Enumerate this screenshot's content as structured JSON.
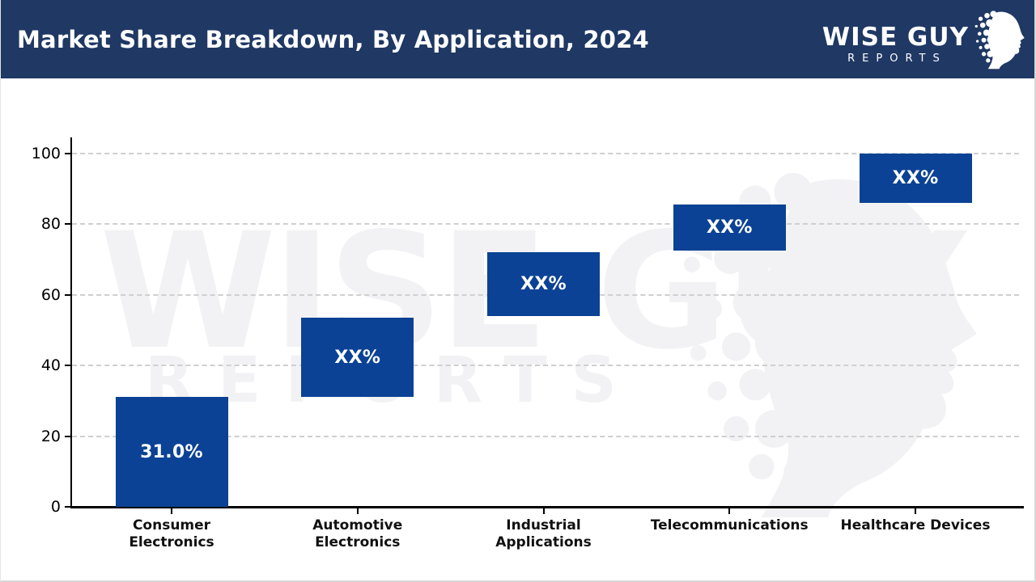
{
  "header": {
    "title": "Market Share Breakdown, By Application, 2024",
    "logo": {
      "name": "WISE GUY",
      "tagline": "REPORTS"
    }
  },
  "watermark": {
    "name": "WISE GUY",
    "tagline": "REPORTS"
  },
  "chart_data": {
    "type": "bar",
    "variant": "waterfall",
    "title": "Market Share Breakdown, By Application, 2024",
    "categories": [
      "Consumer\nElectronics",
      "Automotive\nElectronics",
      "Industrial\nApplications",
      "Telecommunications",
      "Healthcare Devices"
    ],
    "bars": [
      {
        "category": "Consumer Electronics",
        "start": 0,
        "end": 31,
        "label": "31.0%"
      },
      {
        "category": "Automotive Electronics",
        "start": 31,
        "end": 53.5,
        "label": "XX%"
      },
      {
        "category": "Industrial Applications",
        "start": 54,
        "end": 72,
        "label": "XX%"
      },
      {
        "category": "Telecommunications",
        "start": 72.5,
        "end": 85.5,
        "label": "XX%"
      },
      {
        "category": "Healthcare Devices",
        "start": 86,
        "end": 100,
        "label": "XX%"
      }
    ],
    "xlabel": "",
    "ylabel": "",
    "yticks": [
      0,
      20,
      40,
      60,
      80,
      100
    ],
    "ylim": [
      0,
      104
    ],
    "grid": {
      "horizontal": true,
      "style": "dashed"
    },
    "legend": null,
    "colors": {
      "bar": "#0b4295",
      "bar_label": "#ffffff",
      "grid": "#cfcfcf",
      "axis": "#000000",
      "header_bg": "#1f3864",
      "watermark": "#f2f2f4"
    }
  }
}
